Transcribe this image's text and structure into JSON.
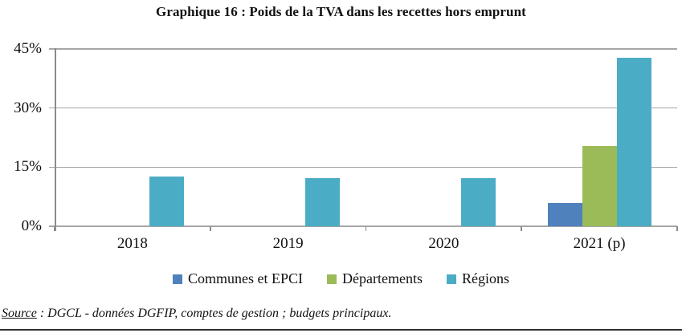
{
  "title": "Graphique 16 : Poids de la TVA dans les recettes hors emprunt",
  "source": {
    "label": "Source",
    "text": " : DGCL - données DGFIP, comptes de gestion ; budgets principaux."
  },
  "colors": {
    "communes": "#4F81BD",
    "departements": "#9BBB59",
    "regions": "#4BACC6",
    "gridline": "#A6A6A6",
    "axis": "#8C8C8C",
    "text": "#111111",
    "bottom_rule": "#2E2E2E"
  },
  "chart_data": {
    "type": "bar",
    "title": "Graphique 16 : Poids de la TVA dans les recettes hors emprunt",
    "categories": [
      "2018",
      "2019",
      "2020",
      "2021 (p)"
    ],
    "series": [
      {
        "name": "Communes et EPCI",
        "color": "#4F81BD",
        "values": [
          0,
          0,
          0,
          6
        ]
      },
      {
        "name": "Départements",
        "color": "#9BBB59",
        "values": [
          0,
          0,
          0,
          20.3
        ]
      },
      {
        "name": "Régions",
        "color": "#4BACC6",
        "values": [
          12.6,
          12.3,
          12.2,
          42.8
        ]
      }
    ],
    "xlabel": "",
    "ylabel": "",
    "ylim": [
      0,
      45
    ],
    "yticks": [
      0,
      15,
      30,
      45
    ],
    "ytick_format": "percent",
    "grid": true,
    "legend_position": "bottom",
    "source_note": "Source : DGCL - données DGFIP, comptes de gestion ; budgets principaux."
  }
}
